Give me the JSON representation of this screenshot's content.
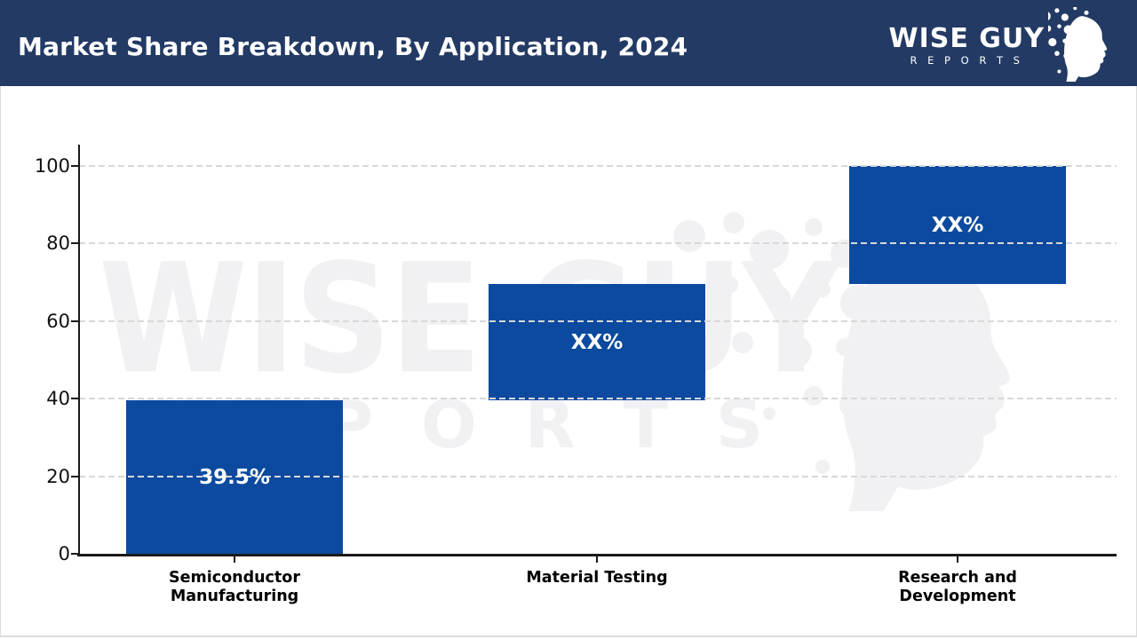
{
  "header": {
    "title": "Market Share Breakdown, By Application, 2024",
    "brand_name": "WISE GUY",
    "brand_subtitle": "R E P O R T S",
    "bg_color": "#233a65"
  },
  "watermark": {
    "line1": "WISE GUY",
    "line2": "R E P O R T S"
  },
  "chart_data": {
    "type": "bar",
    "subtype": "floating-waterfall",
    "title": "Market Share Breakdown, By Application, 2024",
    "categories": [
      "Semiconductor Manufacturing",
      "Material Testing",
      "Research and Development"
    ],
    "bars": [
      {
        "category": "Semiconductor Manufacturing",
        "base": 0,
        "top": 39.5,
        "label": "39.5%"
      },
      {
        "category": "Material Testing",
        "base": 39.5,
        "top": 69.5,
        "label": "XX%"
      },
      {
        "category": "Research and Development",
        "base": 69.5,
        "top": 100,
        "label": "XX%"
      }
    ],
    "xlabel": "",
    "ylabel": "",
    "ylim": [
      0,
      100
    ],
    "yticks": [
      0,
      20,
      40,
      60,
      80,
      100
    ],
    "grid": "horizontal-dashed",
    "grid_color": "#d8d8d8",
    "bar_color": "#0b4a9f",
    "bar_label_color": "#ffffff",
    "axis_color": "#1a1a1a",
    "legend": "none"
  }
}
